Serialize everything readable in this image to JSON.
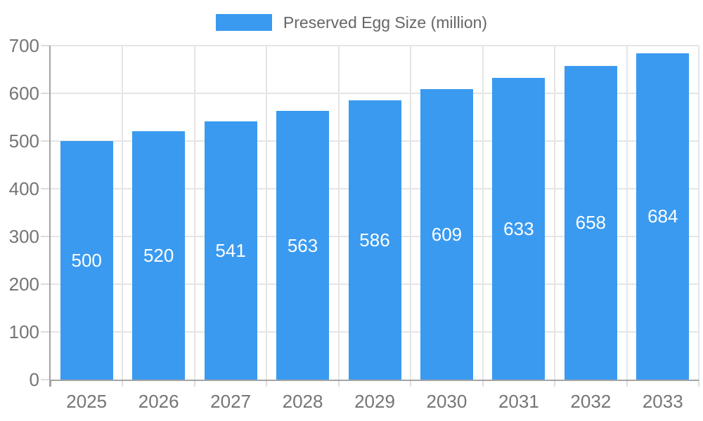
{
  "chart_data": {
    "type": "bar",
    "title": "Preserved Egg Size (million)",
    "legend_label": "Preserved Egg Size (million)",
    "categories": [
      "2025",
      "2026",
      "2027",
      "2028",
      "2029",
      "2030",
      "2031",
      "2032",
      "2033"
    ],
    "values": [
      500,
      520,
      541,
      563,
      586,
      609,
      633,
      658,
      684
    ],
    "xlabel": "",
    "ylabel": "",
    "ylim": [
      0,
      700
    ],
    "ytick_step": 100,
    "ytick_labels": [
      "0",
      "100",
      "200",
      "300",
      "400",
      "500",
      "600",
      "700"
    ],
    "grid": true,
    "legend_position": "top",
    "bar_labels_inside": true,
    "colors": {
      "bar": "#3a9af0",
      "bar_label": "#ffffff",
      "grid": "#e5e5e5",
      "tick": "#dcdcdc",
      "axis": "#a3a3a3",
      "axis_label": "#757575",
      "legend_text": "#666666",
      "background": "#ffffff"
    }
  }
}
